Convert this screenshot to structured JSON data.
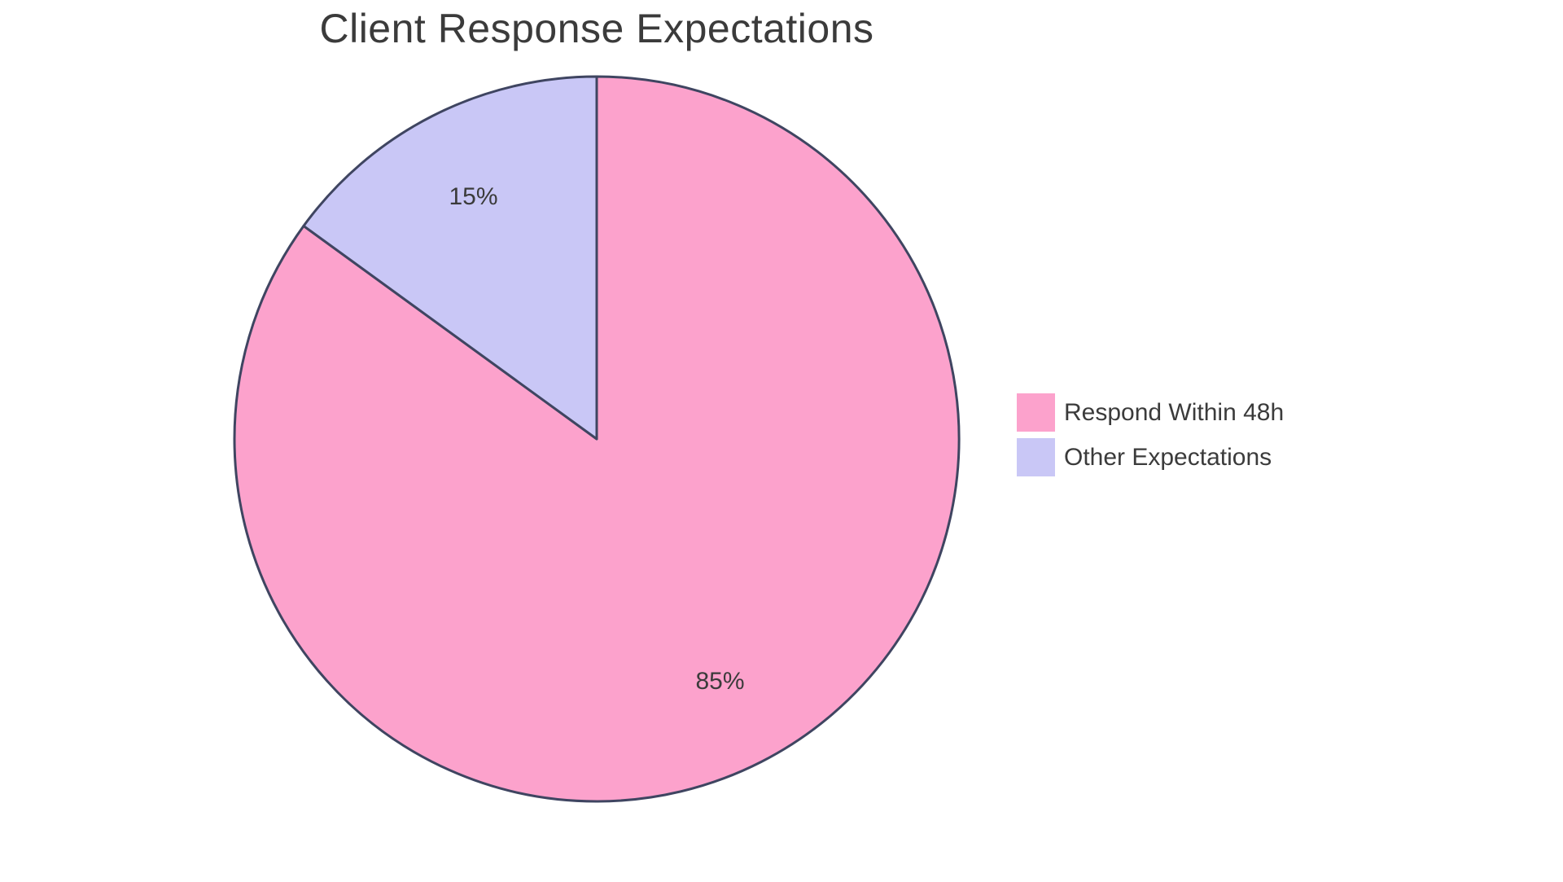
{
  "chart_data": {
    "type": "pie",
    "title": "Client Response Expectations",
    "slices": [
      {
        "label": "Respond Within 48h",
        "value": 85,
        "percent_label": "85%",
        "color": "#FCA2CC"
      },
      {
        "label": "Other Expectations",
        "value": 15,
        "percent_label": "15%",
        "color": "#C9C7F6"
      }
    ],
    "start_angle_deg": 0,
    "direction": "clockwise",
    "legend_position": "right",
    "stroke_color": "#3F4561",
    "stroke_width": 3,
    "label_color": "#3B3B3B",
    "title_color": "#3B3B3B",
    "background_color": "#FFFFFF"
  }
}
